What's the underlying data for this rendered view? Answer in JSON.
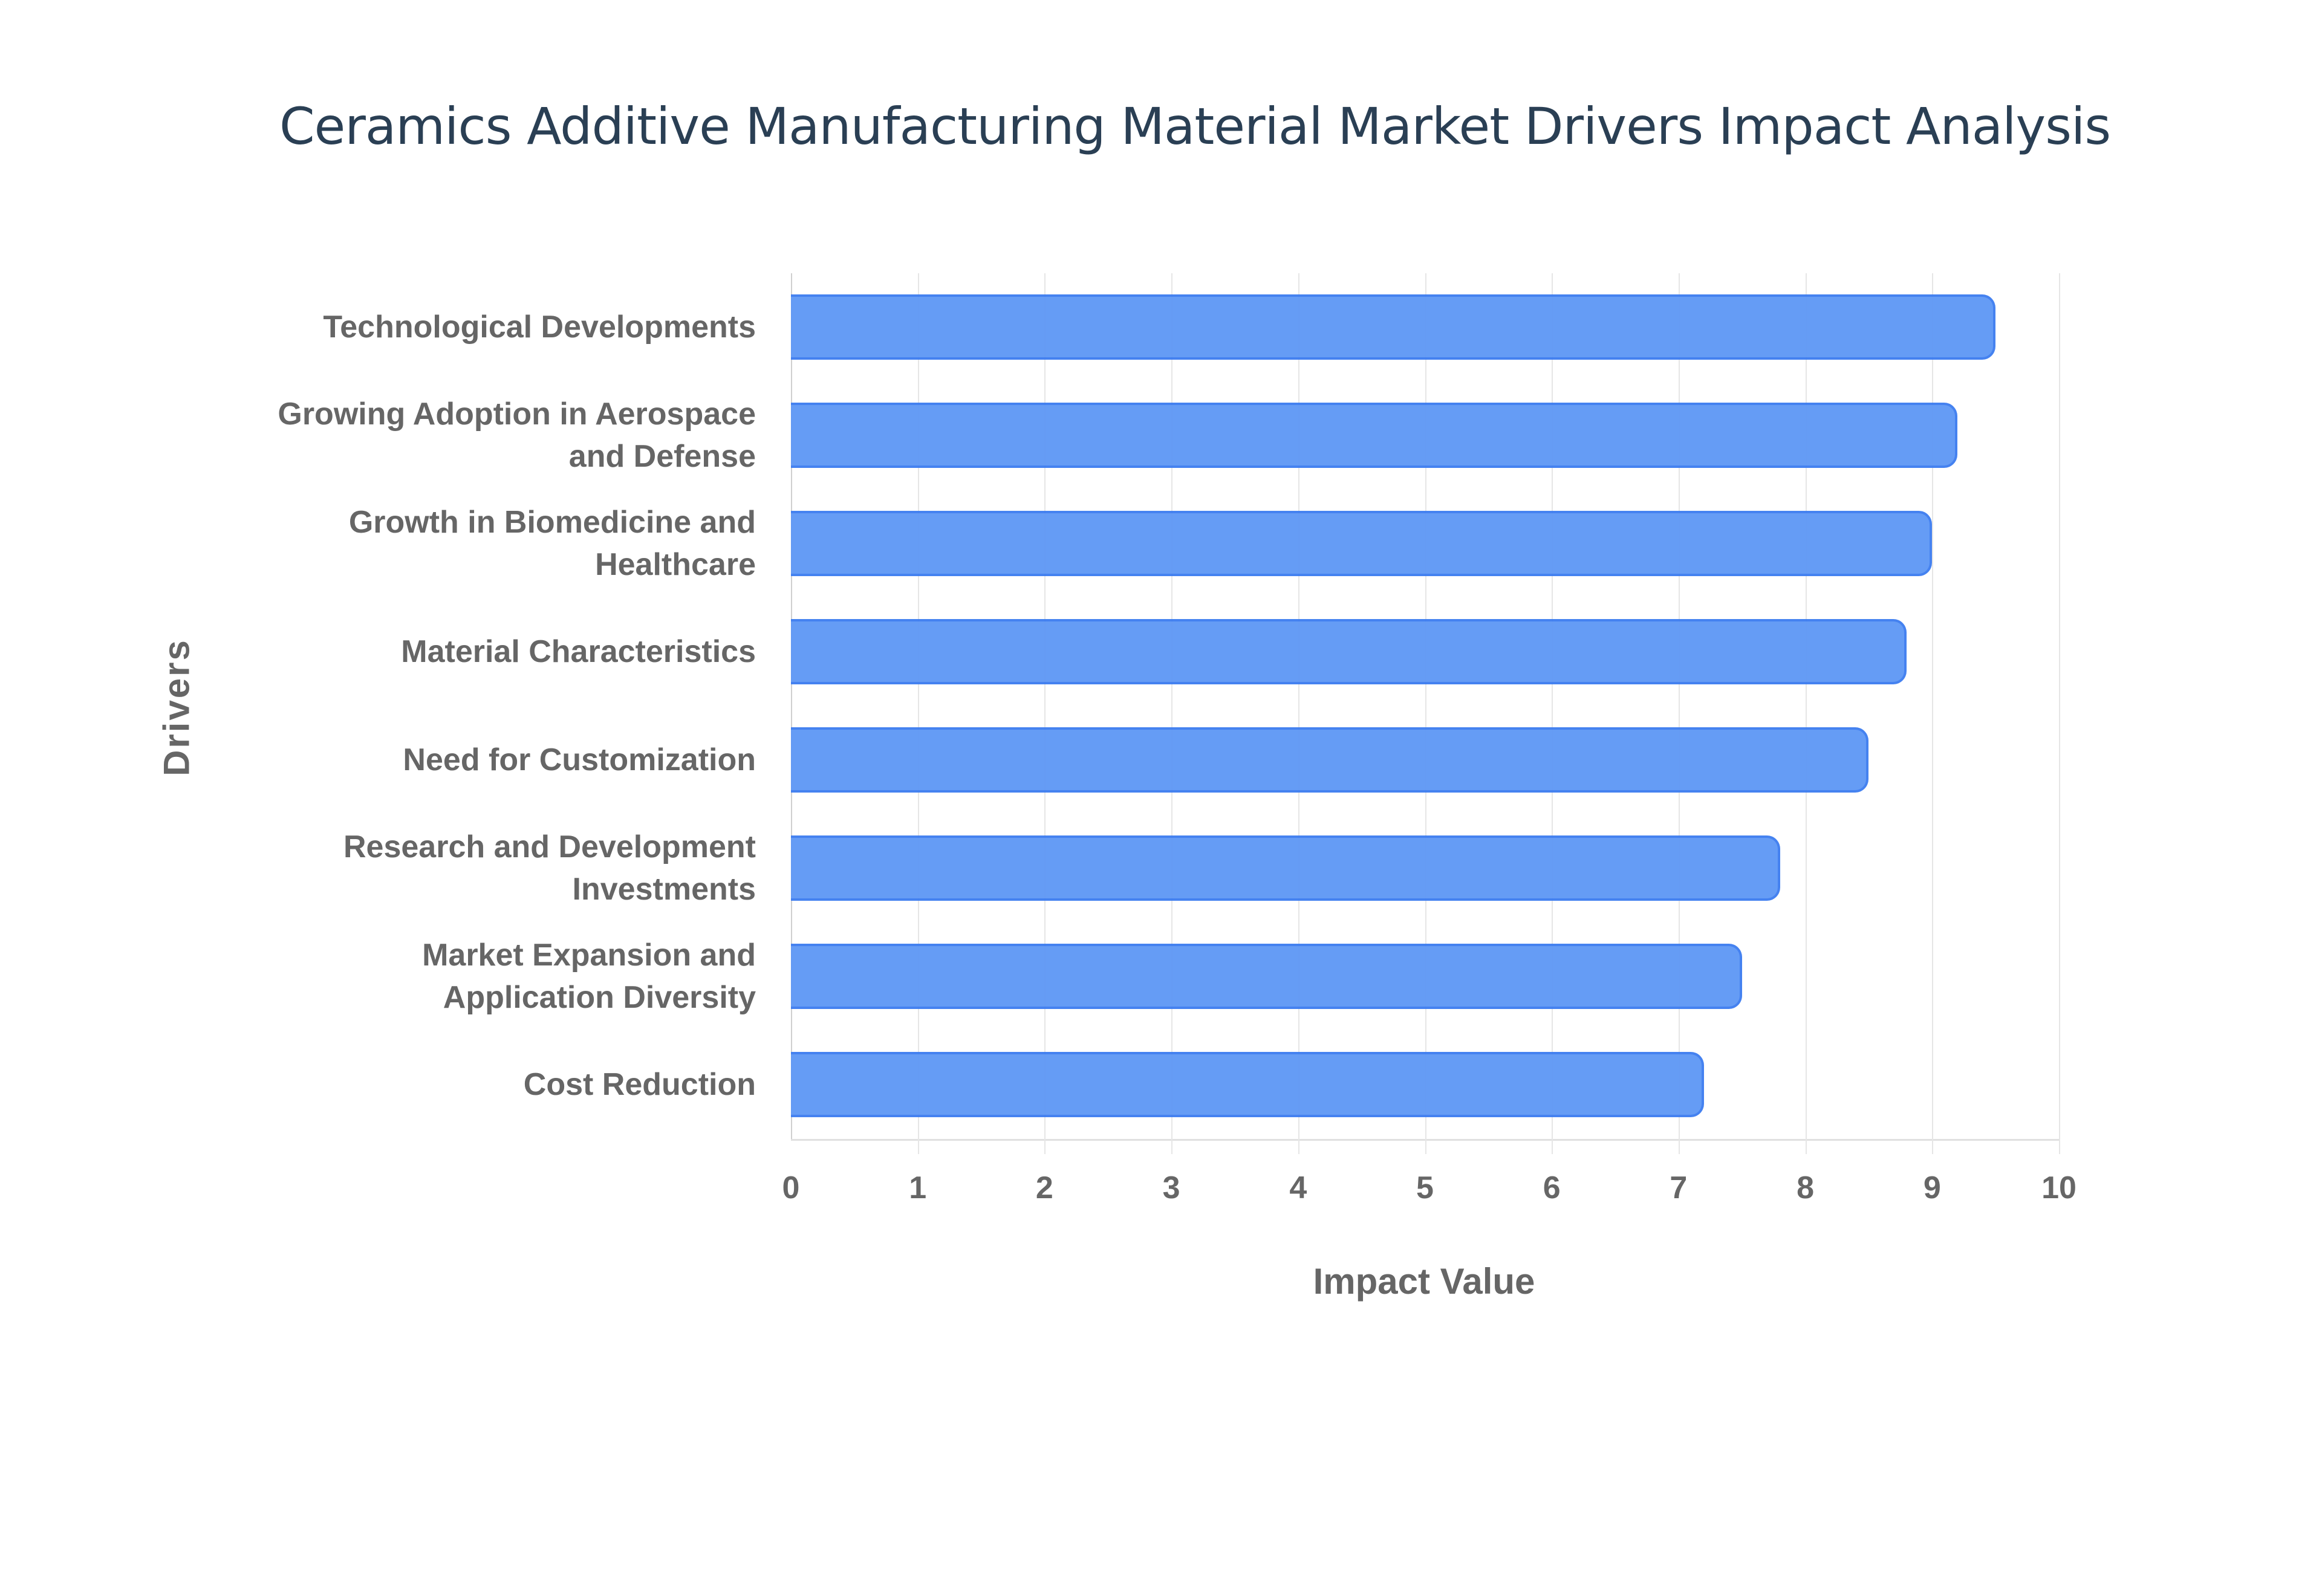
{
  "chart": {
    "title": "Ceramics Additive Manufacturing Material Market Drivers Impact Analysis",
    "xlabel": "Impact Value",
    "ylabel": "Drivers",
    "bar_color": "#6199f5",
    "bar_border_color": "#3f7ef0",
    "x_ticks": [
      "0",
      "1",
      "2",
      "3",
      "4",
      "5",
      "6",
      "7",
      "8",
      "9",
      "10"
    ],
    "bars": [
      {
        "label_lines": [
          "Technological Developments"
        ],
        "value": 9.5
      },
      {
        "label_lines": [
          "Growing Adoption in Aerospace",
          "and Defense"
        ],
        "value": 9.2
      },
      {
        "label_lines": [
          "Growth in Biomedicine and",
          "Healthcare"
        ],
        "value": 9.0
      },
      {
        "label_lines": [
          "Material Characteristics"
        ],
        "value": 8.8
      },
      {
        "label_lines": [
          "Need for Customization"
        ],
        "value": 8.5
      },
      {
        "label_lines": [
          "Research and Development",
          "Investments"
        ],
        "value": 7.8
      },
      {
        "label_lines": [
          "Market Expansion and",
          "Application Diversity"
        ],
        "value": 7.5
      },
      {
        "label_lines": [
          "Cost Reduction"
        ],
        "value": 7.2
      }
    ]
  },
  "chart_data": {
    "type": "bar",
    "orientation": "horizontal",
    "title": "Ceramics Additive Manufacturing Material Market Drivers Impact Analysis",
    "xlabel": "Impact Value",
    "ylabel": "Drivers",
    "categories": [
      "Technological Developments",
      "Growing Adoption in Aerospace and Defense",
      "Growth in Biomedicine and Healthcare",
      "Material Characteristics",
      "Need for Customization",
      "Research and Development Investments",
      "Market Expansion and Application Diversity",
      "Cost Reduction"
    ],
    "values": [
      9.5,
      9.2,
      9.0,
      8.8,
      8.5,
      7.8,
      7.5,
      7.2
    ],
    "xlim": [
      0,
      10
    ],
    "x_ticks": [
      0,
      1,
      2,
      3,
      4,
      5,
      6,
      7,
      8,
      9,
      10
    ],
    "grid": true,
    "legend": null
  }
}
